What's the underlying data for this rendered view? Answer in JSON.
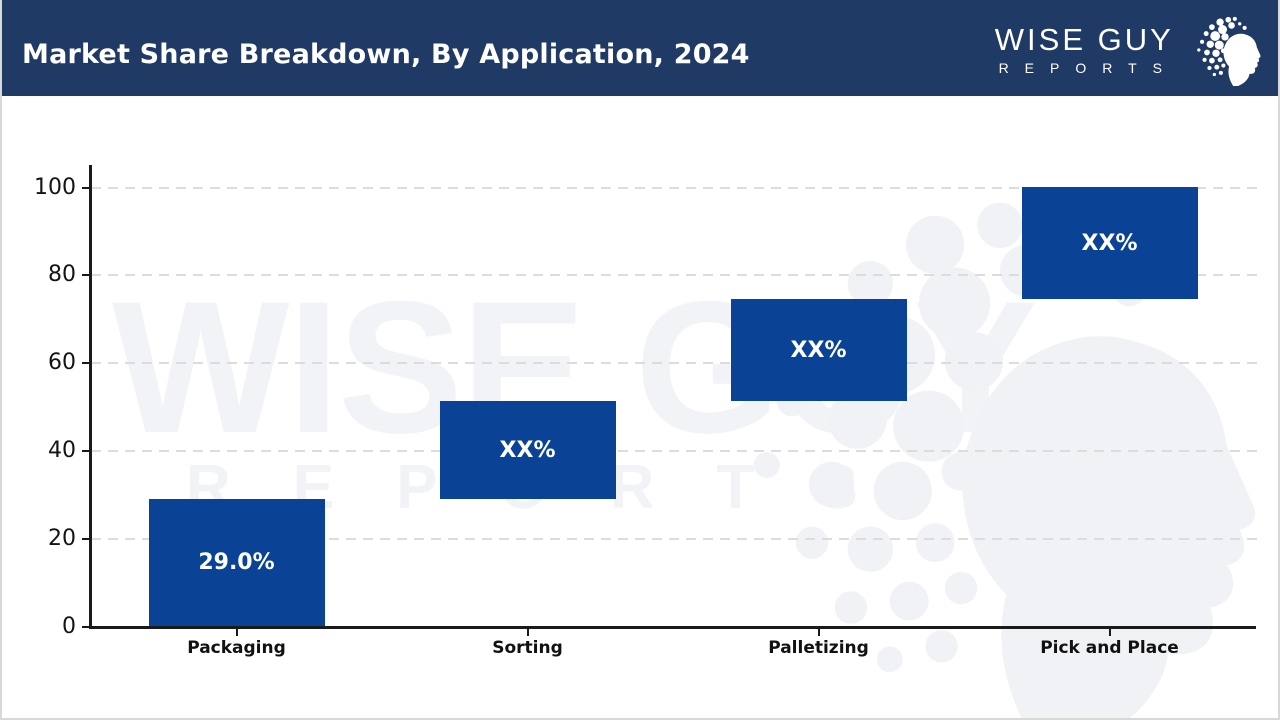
{
  "header": {
    "title": "Market Share Breakdown, By Application, 2024",
    "bg_color": "#203a66",
    "logo": {
      "line1": "WISE GUY",
      "line2": "REPORTS"
    }
  },
  "watermark": {
    "line1": "WISE GUY",
    "line2": "REPORTS"
  },
  "chart_data": {
    "type": "bar",
    "subtype": "waterfall",
    "title": "Market Share Breakdown, By Application, 2024",
    "categories": [
      "Packaging",
      "Sorting",
      "Palletizing",
      "Pick and Place"
    ],
    "segments": [
      {
        "category": "Packaging",
        "start": 0,
        "end": 29.0,
        "label": "29.0%"
      },
      {
        "category": "Sorting",
        "start": 29.0,
        "end": 51.3,
        "label": "XX%"
      },
      {
        "category": "Palletizing",
        "start": 51.3,
        "end": 74.5,
        "label": "XX%"
      },
      {
        "category": "Pick and Place",
        "start": 74.5,
        "end": 100.2,
        "label": "XX%"
      }
    ],
    "xlabel": "",
    "ylabel": "",
    "ylim": [
      0,
      105
    ],
    "yticks": [
      0,
      20,
      40,
      60,
      80,
      100
    ],
    "grid": "dashed-horizontal",
    "legend": "none",
    "bar_color": "#0a4296",
    "bar_label_color": "#ffffff",
    "grid_color": "#dcdcdc",
    "watermark_color": "#f2f3f6"
  }
}
